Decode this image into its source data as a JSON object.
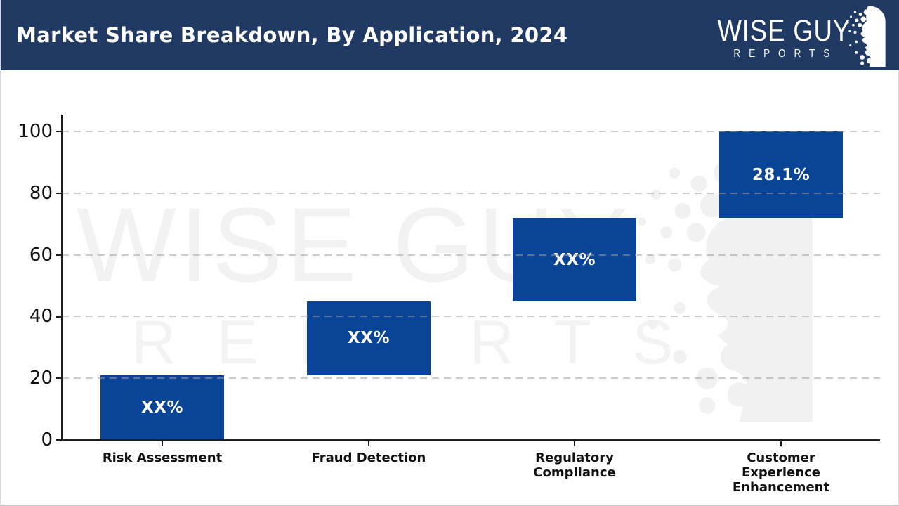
{
  "header": {
    "title": "Market Share Breakdown, By Application, 2024",
    "bg_color": "#203a64",
    "logo": {
      "main": "WISE GUY",
      "sub": "REPORTS"
    }
  },
  "watermark": {
    "main": "WISE GUY",
    "sub": "REPORTS"
  },
  "chart_data": {
    "type": "bar",
    "variant": "waterfall",
    "title": "Market Share Breakdown, By Application, 2024",
    "categories": [
      "Risk Assessment",
      "Fraud Detection",
      "Regulatory Compliance",
      "Customer Experience Enhancement"
    ],
    "segments": [
      {
        "category": "Risk Assessment",
        "start": 0,
        "end": 21,
        "label": "XX%"
      },
      {
        "category": "Fraud Detection",
        "start": 21,
        "end": 44.9,
        "label": "XX%"
      },
      {
        "category": "Regulatory Compliance",
        "start": 44.9,
        "end": 71.9,
        "label": "XX%"
      },
      {
        "category": "Customer Experience Enhancement",
        "start": 71.9,
        "end": 100,
        "label": "28.1%"
      }
    ],
    "xlabel": "",
    "ylabel": "",
    "ylim": [
      0,
      100
    ],
    "yticks": [
      0,
      20,
      40,
      60,
      80,
      100
    ],
    "grid": "horizontal-dashed",
    "legend": "none",
    "bar_color": "#0a4496",
    "bar_label_color": "#ffffff",
    "axis_color": "#1c1c1c"
  }
}
